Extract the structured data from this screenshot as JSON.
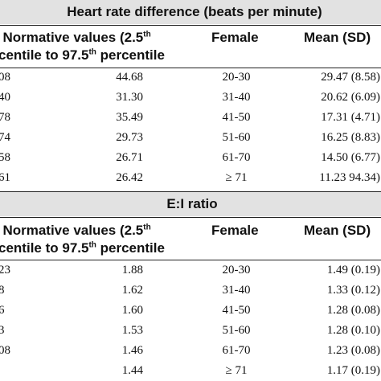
{
  "heart_rate": {
    "title": "Heart rate difference (beats per minute)",
    "col_norm_line1": "Normative values (2.5",
    "col_norm_sup1": "th",
    "col_norm_line2": "entile to 97.5",
    "col_norm_sup2": "th",
    "col_norm_line2_end": " percentile",
    "col_norm_prefix": ", ",
    "col_norm_prefix_line2": "c",
    "col_female": "Female",
    "col_mean": "Mean (SD)",
    "rows": [
      {
        "lead": "08",
        "norm": "44.68",
        "female": "20-30",
        "mean": "29.47 (8.58)"
      },
      {
        "lead": "40",
        "norm": "31.30",
        "female": "31-40",
        "mean": "20.62 (6.09)"
      },
      {
        "lead": "78",
        "norm": "35.49",
        "female": "41-50",
        "mean": "17.31 (4.71)"
      },
      {
        "lead": "74",
        "norm": "29.73",
        "female": "51-60",
        "mean": "16.25 (8.83)"
      },
      {
        "lead": "58",
        "norm": "26.71",
        "female": "61-70",
        "mean": "14.50 (6.77)"
      },
      {
        "lead": "61",
        "norm": "26.42",
        "female": "≥ 71",
        "mean": "11.23 94.34)"
      }
    ]
  },
  "ei_ratio": {
    "title": "E:I ratio",
    "col_norm_line1": "Normative values (2.5",
    "col_norm_sup1": "th",
    "col_norm_line2": "entile to 97.5",
    "col_norm_sup2": "th",
    "col_norm_line2_end": " percentile",
    "col_norm_prefix": ", ",
    "col_norm_prefix_line2": "c",
    "col_female": "Female",
    "col_mean": "Mean (SD)",
    "rows": [
      {
        "lead": "23",
        "norm": "1.88",
        "female": "20-30",
        "mean": "1.49 (0.19)"
      },
      {
        "lead": "8",
        "norm": "1.62",
        "female": "31-40",
        "mean": "1.33 (0.12)"
      },
      {
        "lead": "6",
        "norm": "1.60",
        "female": "41-50",
        "mean": "1.28 (0.08)"
      },
      {
        "lead": "3",
        "norm": "1.53",
        "female": "51-60",
        "mean": "1.28 (0.10)"
      },
      {
        "lead": "08",
        "norm": "1.46",
        "female": "61-70",
        "mean": "1.23 (0.08)"
      },
      {
        "lead": "",
        "norm": "1.44",
        "female": "≥ 71",
        "mean": "1.17 (0.19)"
      }
    ]
  }
}
